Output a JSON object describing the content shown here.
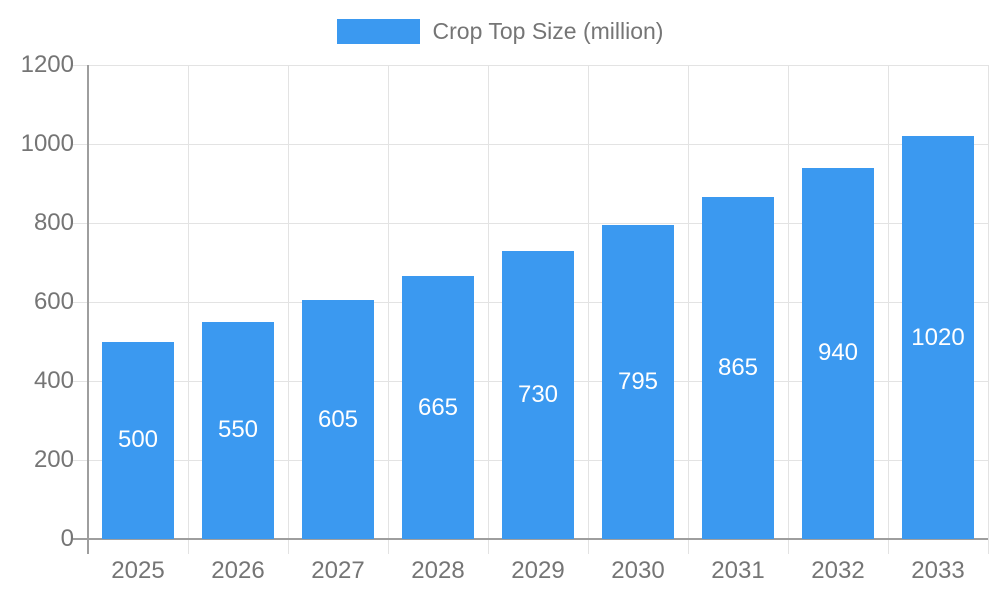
{
  "legend": {
    "label": "Crop Top Size (million)",
    "swatch_color": "#3B99F0"
  },
  "chart_data": {
    "type": "bar",
    "title": "Crop Top Size (million)",
    "categories": [
      "2025",
      "2026",
      "2027",
      "2028",
      "2029",
      "2030",
      "2031",
      "2032",
      "2033"
    ],
    "values": [
      500,
      550,
      605,
      665,
      730,
      795,
      865,
      940,
      1020
    ],
    "xlabel": "",
    "ylabel": "",
    "ylim": [
      0,
      1200
    ],
    "yticks": [
      0,
      200,
      400,
      600,
      800,
      1000,
      1200
    ],
    "grid": true,
    "legend_position": "top",
    "bar_color": "#3B99F0",
    "bar_label_color": "#ffffff",
    "axis_text_color": "#757575",
    "grid_color": "#e3e3e3",
    "axis_line_color": "#9e9e9e",
    "background_color": "#ffffff"
  }
}
